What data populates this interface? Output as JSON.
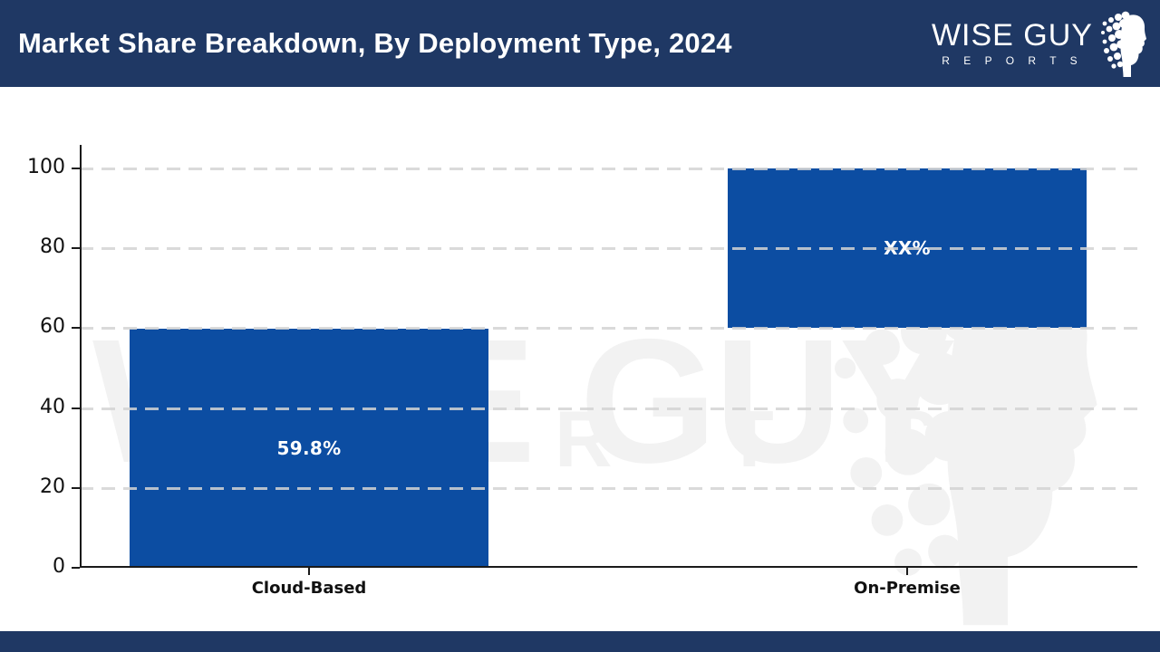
{
  "header": {
    "title": "Market Share Breakdown, By Deployment Type, 2024",
    "logo": {
      "line1": "WISE GUY",
      "line2": "R E P O R T S"
    }
  },
  "watermark": {
    "line1": "WISE GUY",
    "line2": "R T S"
  },
  "colors": {
    "header_bg": "#1f3864",
    "footer_bg": "#1f3864",
    "bar": "#0c4da2",
    "grid": "#d4d4d4",
    "axis": "#1a1a1a",
    "bar_label": "#ffffff",
    "watermark": "#f2f2f2"
  },
  "chart_data": {
    "type": "bar",
    "title": "Market Share Breakdown, By Deployment Type, 2024",
    "categories": [
      "Cloud-Based",
      "On-Premise"
    ],
    "bars": [
      {
        "category": "Cloud-Based",
        "from": 0,
        "to": 59.8,
        "label": "59.8%"
      },
      {
        "category": "On-Premise",
        "from": 60,
        "to": 100,
        "label": "XX%"
      }
    ],
    "xlabel": "",
    "ylabel": "",
    "ylim": [
      0,
      100
    ],
    "yticks": [
      0,
      20,
      40,
      60,
      80,
      100
    ],
    "grid": true,
    "grid_style": "dashed",
    "legend": false
  }
}
